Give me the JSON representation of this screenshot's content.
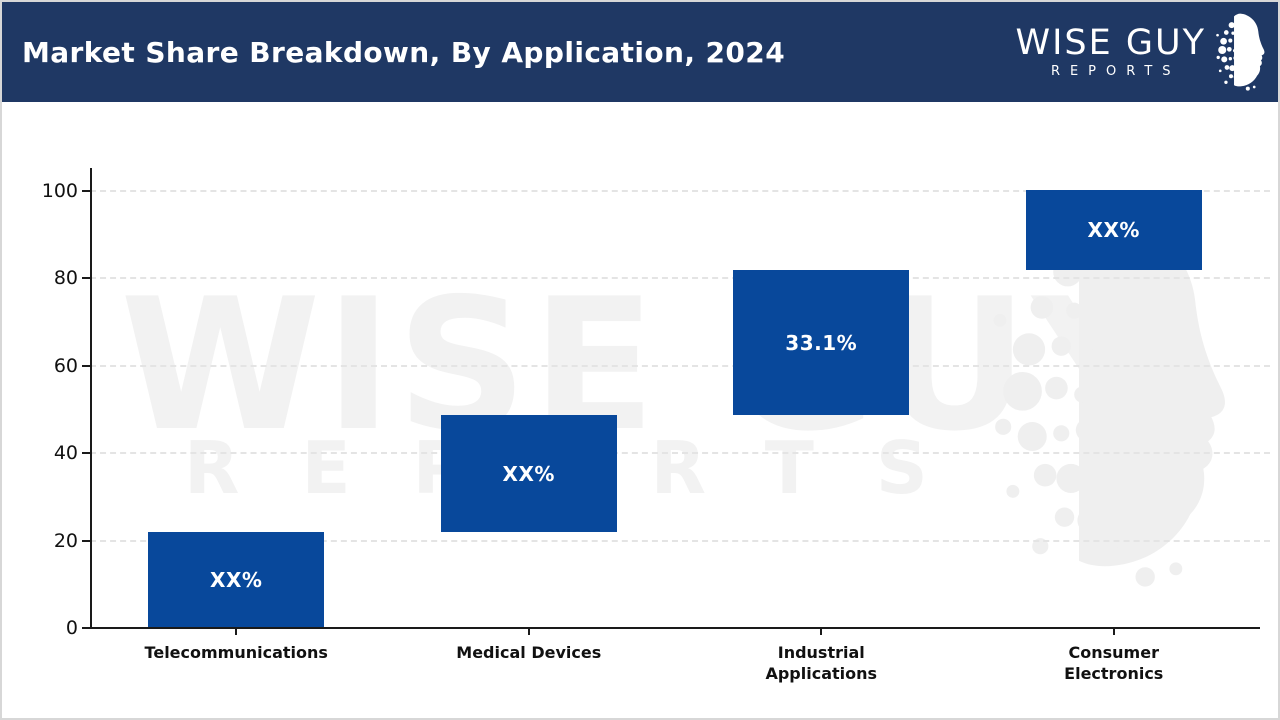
{
  "header": {
    "title": "Market Share Breakdown, By Application, 2024",
    "logo": {
      "line1": "WISE GUY",
      "line2": "REPORTS"
    }
  },
  "watermark": {
    "line1": "WISE GUY",
    "line2": "REPORTS"
  },
  "colors": {
    "header_bg": "#1f3864",
    "bar": "#08489b",
    "bar_label": "#ffffff",
    "gridline": "#e4e4e4",
    "axis": "#1a1a1a",
    "watermark": "#f2f2f2"
  },
  "chart_data": {
    "type": "bar",
    "subtype": "waterfall",
    "title": "Market Share Breakdown, By Application, 2024",
    "categories": [
      "Telecommunications",
      "Medical Devices",
      "Industrial\nApplications",
      "Consumer\nElectronics"
    ],
    "bars": [
      {
        "category": "Telecommunications",
        "from": 0,
        "to": 21.7,
        "label": "XX%"
      },
      {
        "category": "Medical Devices",
        "from": 21.7,
        "to": 48.5,
        "label": "XX%"
      },
      {
        "category": "Industrial Applications",
        "from": 48.5,
        "to": 81.6,
        "label": "33.1%"
      },
      {
        "category": "Consumer Electronics",
        "from": 81.6,
        "to": 100,
        "label": "XX%"
      }
    ],
    "ylabel": "",
    "xlabel": "",
    "yticks": [
      0,
      20,
      40,
      60,
      80,
      100
    ],
    "ylim": [
      0,
      105
    ],
    "grid": "horizontal-dashed",
    "legend": null
  }
}
